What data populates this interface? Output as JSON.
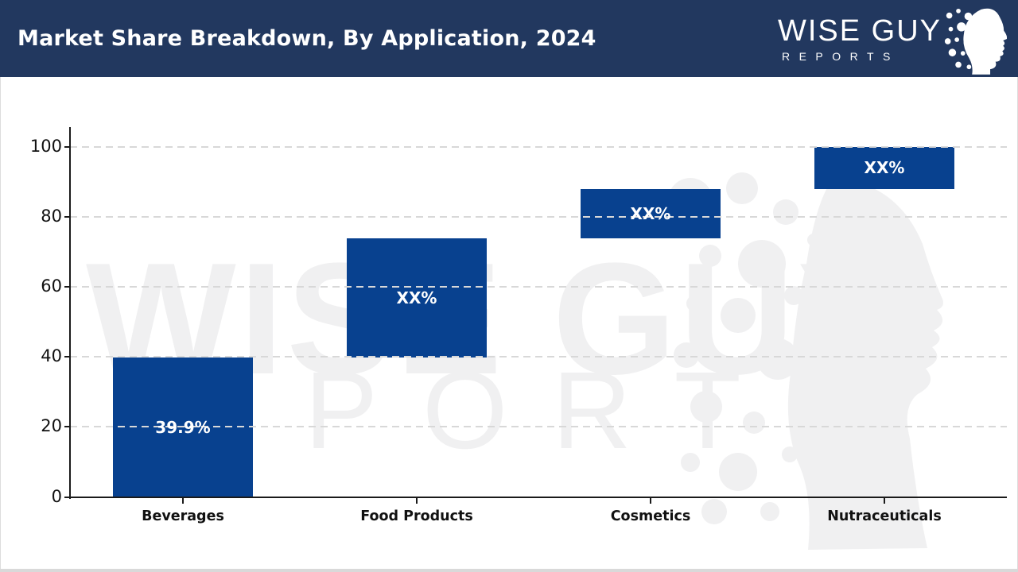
{
  "header": {
    "title": "Market Share Breakdown, By Application, 2024",
    "logo": {
      "line1": "WISE GUY",
      "line2": "REPORTS"
    }
  },
  "watermark": {
    "line1": "WISE GUY",
    "line2": "PORTS"
  },
  "chart_data": {
    "type": "bar",
    "subtype": "waterfall",
    "title": "Market Share Breakdown, By Application, 2024",
    "categories": [
      "Beverages",
      "Food Products",
      "Cosmetics",
      "Nutraceuticals"
    ],
    "segments": [
      {
        "category": "Beverages",
        "label": "39.9%",
        "start": 0,
        "end": 39.9
      },
      {
        "category": "Food Products",
        "label": "XX%",
        "start": 39.9,
        "end": 74
      },
      {
        "category": "Cosmetics",
        "label": "XX%",
        "start": 74,
        "end": 88
      },
      {
        "category": "Nutraceuticals",
        "label": "XX%",
        "start": 88,
        "end": 100
      }
    ],
    "yticks": [
      0,
      20,
      40,
      60,
      80,
      100
    ],
    "ylim": [
      0,
      105
    ],
    "xlabel": "",
    "ylabel": "",
    "grid": "horizontal-dashed",
    "legend": "none",
    "bar_color": "#08418f"
  },
  "colors": {
    "header_bg": "#22385f",
    "bar": "#08418f",
    "grid": "#d8d8d8",
    "axis": "#1a1a1a",
    "watermark": "#f0f0f1",
    "value_label": "#ffffff",
    "bottom_strip": "#d9d9d9"
  }
}
